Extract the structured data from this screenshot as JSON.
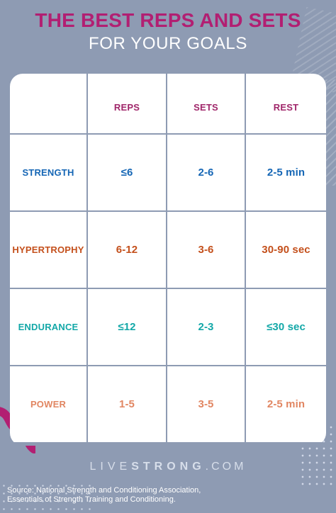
{
  "page": {
    "title": "THE BEST REPS AND SETS",
    "subtitle": "FOR YOUR GOALS"
  },
  "table": {
    "headers": {
      "reps": "REPS",
      "sets": "SETS",
      "rest": "REST"
    },
    "rows": [
      {
        "label": "STRENGTH",
        "reps": "≤6",
        "sets": "2-6",
        "rest": "2-5 min"
      },
      {
        "label": "HYPERTROPHY",
        "reps": "6-12",
        "sets": "3-6",
        "rest": "30-90 sec"
      },
      {
        "label": "ENDURANCE",
        "reps": "≤12",
        "sets": "2-3",
        "rest": "≤30 sec"
      },
      {
        "label": "POWER",
        "reps": "1-5",
        "sets": "3-5",
        "rest": "2-5 min"
      }
    ]
  },
  "branding": {
    "left": "LIVE",
    "middle": "STRONG",
    "right": ".COM"
  },
  "source": {
    "line1": "Source: National Strength and Conditioning Association,",
    "line2": "Essentials of Strength Training and Conditioning."
  },
  "colors": {
    "background": "#8e9bb3",
    "title": "#b21f72",
    "header": "#a0266a",
    "strength": "#1566b5",
    "hypertrophy": "#c4501c",
    "endurance": "#13a8a8",
    "power": "#e18662",
    "white": "#ffffff"
  }
}
